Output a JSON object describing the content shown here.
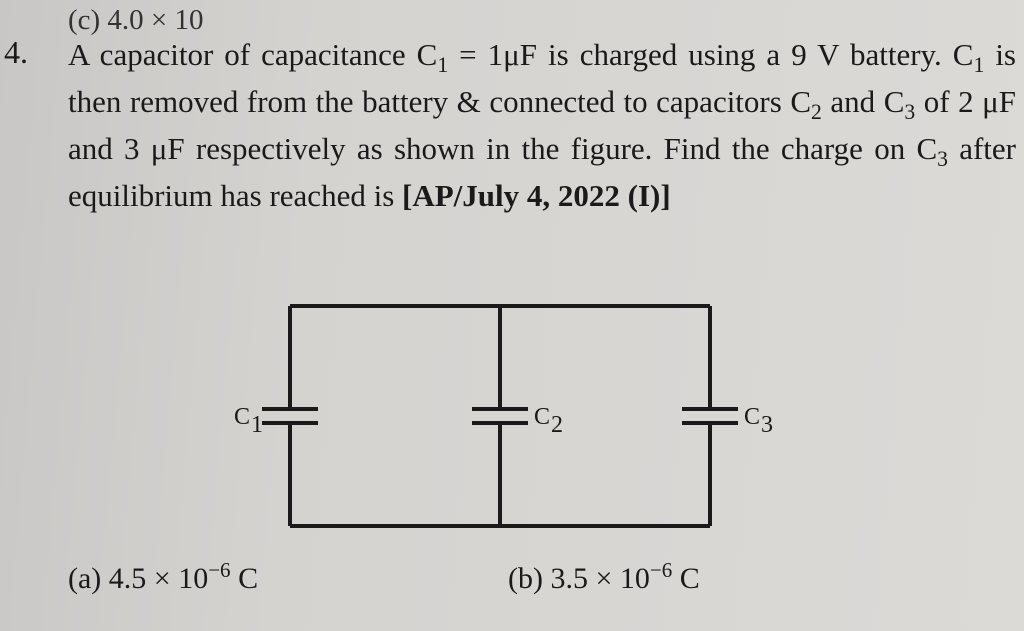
{
  "prev_line": "(c) 4.0 × 10",
  "question_number": "4.",
  "question_html_parts": {
    "p1a": "A capacitor of capacitance C",
    "p1b": " = 1μF is charged using a 9 V battery. C",
    "p1c": " is then removed from the battery & connected to capacitors C",
    "p1d": " and C",
    "p1e": " of 2 μF and 3 μF respectively as shown in the figure. Find the charge on C",
    "p1f": " after equilibrium has reached is",
    "tag": "[AP/July 4, 2022 (I)]",
    "sub1": "1",
    "sub2": "1",
    "sub3": "2",
    "sub4": "3",
    "sub5": "3"
  },
  "diagram": {
    "labels": {
      "c1": "C",
      "c1s": "1",
      "c2": "C",
      "c2s": "2",
      "c3": "C",
      "c3s": "3"
    },
    "stroke": "#1a1a1a",
    "line_width": 4,
    "cap_gap": 14,
    "cap_plate_halflen": 28
  },
  "answers": {
    "a_prefix": "(a) ",
    "a_val": "4.5 × 10",
    "a_exp": "−6",
    "a_unit": " C",
    "b_prefix": "(b) ",
    "b_val": "3.5 × 10",
    "b_exp": "−6",
    "b_unit": " C"
  }
}
